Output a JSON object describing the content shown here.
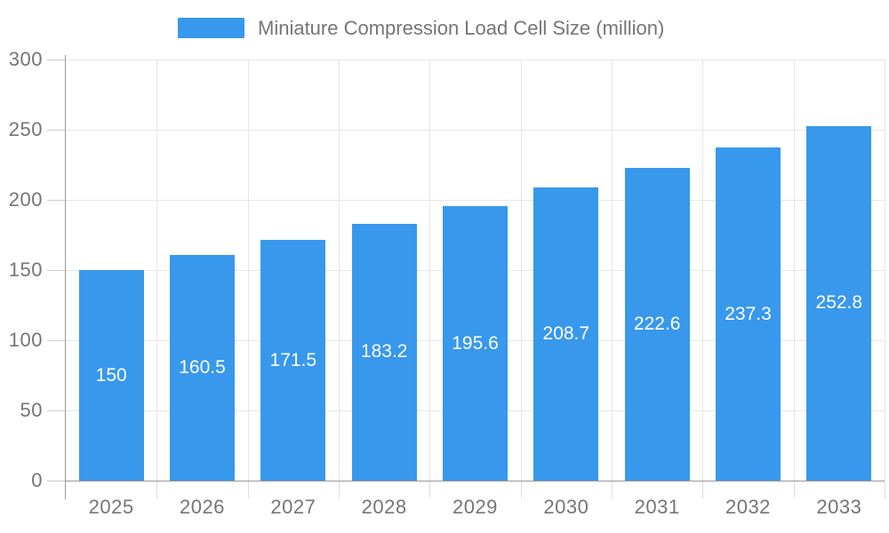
{
  "chart_data": {
    "type": "bar",
    "title": "Miniature Compression Load Cell Size (million)",
    "categories": [
      "2025",
      "2026",
      "2027",
      "2028",
      "2029",
      "2030",
      "2031",
      "2032",
      "2033"
    ],
    "values": [
      150,
      160.5,
      171.5,
      183.2,
      195.6,
      208.7,
      222.6,
      237.3,
      252.8
    ],
    "xlabel": "",
    "ylabel": "",
    "ylim": [
      0,
      300
    ],
    "yticks": [
      0,
      50,
      100,
      150,
      200,
      250,
      300
    ],
    "grid": true,
    "legend_position": "top-center",
    "bar_value_labels": "inside-middle"
  },
  "legend": {
    "label": "Miniature Compression Load Cell Size (million)"
  },
  "colors": {
    "bar": "#3898ec",
    "bar_label": "#ffffff",
    "axis_text": "#757575",
    "legend_text": "#757575",
    "axis_line": "#999999",
    "y_tick": "#cccccc",
    "x_tick": "#dddddd",
    "grid": "#e6e6e6",
    "background": "#ffffff"
  }
}
